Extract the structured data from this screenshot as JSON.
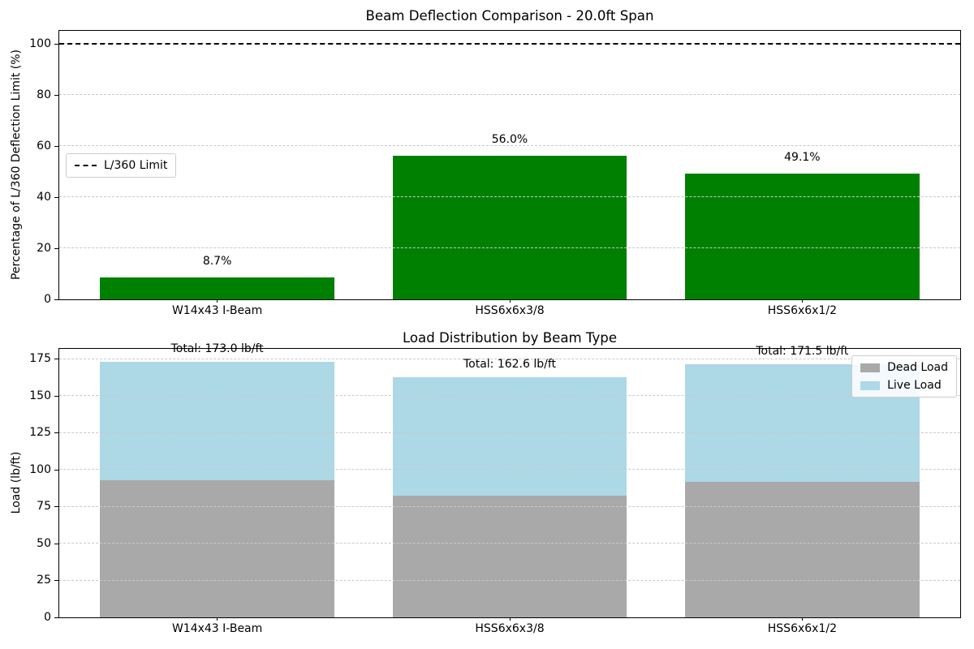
{
  "chart_data": [
    {
      "type": "bar",
      "title": "Beam Deflection Comparison - 20.0ft Span",
      "xlabel": "",
      "ylabel": "Percentage of L/360 Deflection Limit (%)",
      "categories": [
        "W14x43 I-Beam",
        "HSS6x6x3/8",
        "HSS6x6x1/2"
      ],
      "values": [
        8.7,
        56.0,
        49.1
      ],
      "bar_labels": [
        "8.7%",
        "56.0%",
        "49.1%"
      ],
      "bar_color": "#008000",
      "ylim": [
        0,
        105
      ],
      "yticks": [
        0,
        20,
        40,
        60,
        80,
        100
      ],
      "grid": true,
      "limit_line": {
        "value": 100,
        "label": "L/360 Limit",
        "color": "#000000",
        "style": "dashed"
      },
      "legend": {
        "position": "center-left",
        "entries": [
          {
            "label": "L/360 Limit",
            "swatch": "dashed-line",
            "color": "#000000"
          }
        ]
      }
    },
    {
      "type": "stacked_bar",
      "title": "Load Distribution by Beam Type",
      "xlabel": "",
      "ylabel": "Load (lb/ft)",
      "categories": [
        "W14x43 I-Beam",
        "HSS6x6x3/8",
        "HSS6x6x1/2"
      ],
      "series": [
        {
          "name": "Dead Load",
          "color": "#a9a9a9",
          "values": [
            93.0,
            82.6,
            91.5
          ]
        },
        {
          "name": "Live Load",
          "color": "#add8e6",
          "values": [
            80.0,
            80.0,
            80.0
          ]
        }
      ],
      "totals": [
        173.0,
        162.6,
        171.5
      ],
      "total_labels": [
        "Total: 173.0 lb/ft",
        "Total: 162.6 lb/ft",
        "Total: 171.5 lb/ft"
      ],
      "ylim": [
        0,
        181.7
      ],
      "yticks": [
        0,
        25,
        50,
        75,
        100,
        125,
        150,
        175
      ],
      "grid": true,
      "legend": {
        "position": "top-right",
        "entries": [
          {
            "label": "Dead Load",
            "swatch": "rect",
            "color": "#a9a9a9"
          },
          {
            "label": "Live Load",
            "swatch": "rect",
            "color": "#add8e6"
          }
        ]
      }
    }
  ]
}
